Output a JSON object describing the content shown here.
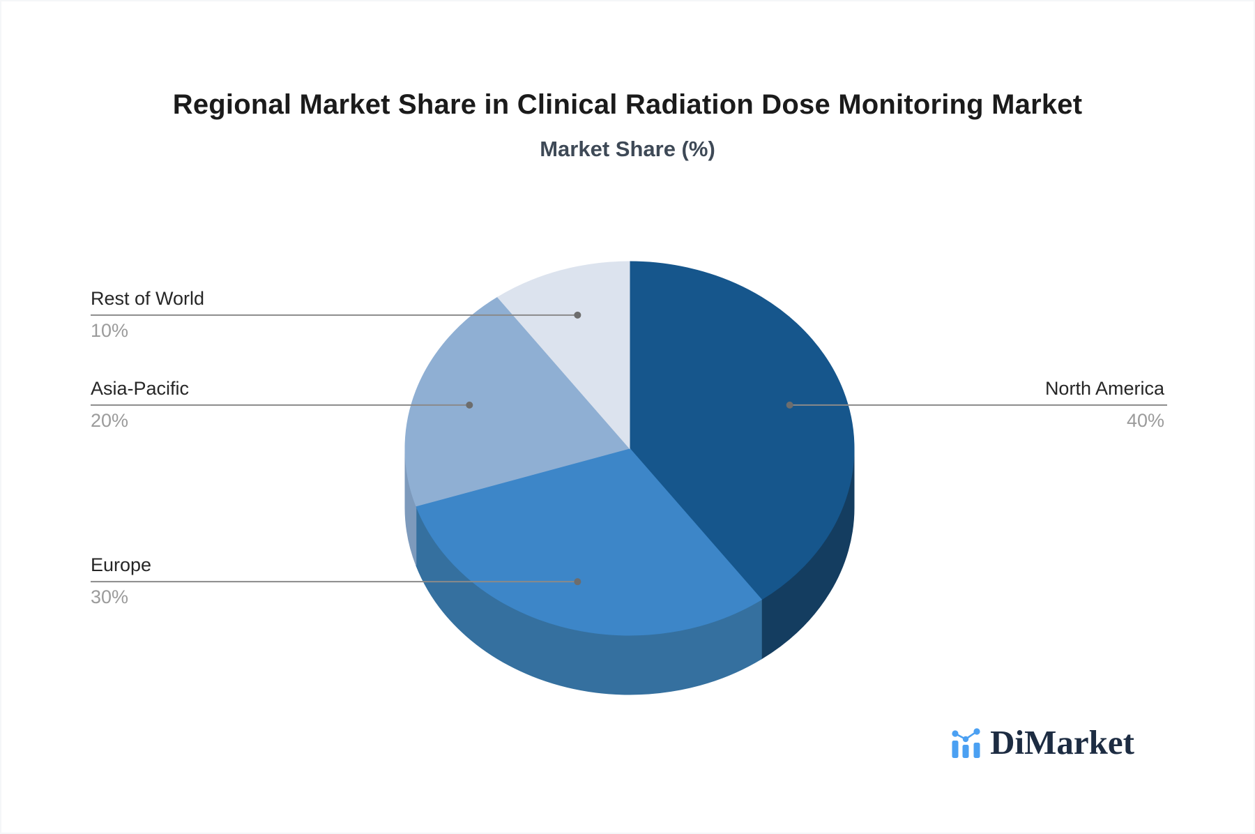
{
  "title": "Regional Market Share in Clinical Radiation Dose Monitoring Market",
  "subtitle": "Market Share (%)",
  "chart_data": {
    "type": "pie",
    "title": "Regional Market Share in Clinical Radiation Dose Monitoring Market",
    "subtitle": "Market Share (%)",
    "unit": "%",
    "style": "3d-pie",
    "start_position": "top",
    "direction": "clockwise",
    "legend_position": "none",
    "categories": [
      "North America",
      "Europe",
      "Asia-Pacific",
      "Rest of World"
    ],
    "values": [
      40,
      30,
      20,
      10
    ],
    "slices": [
      {
        "label": "North America",
        "value": 40,
        "pct_label": "40%",
        "color": "#16568C",
        "side_color": "#143D60",
        "label_side": "right"
      },
      {
        "label": "Europe",
        "value": 30,
        "pct_label": "30%",
        "color": "#3D86C8",
        "side_color": "#35709F",
        "label_side": "left"
      },
      {
        "label": "Asia-Pacific",
        "value": 20,
        "pct_label": "20%",
        "color": "#8FAFD3",
        "side_color": "#7D9ABC",
        "label_side": "left"
      },
      {
        "label": "Rest of World",
        "value": 10,
        "pct_label": "10%",
        "color": "#DCE3EE",
        "side_color": "#C9D2E0",
        "label_side": "left"
      }
    ],
    "leader_line_color": "#8a8a8a",
    "leader_dot_color": "#6d6d6d",
    "label_name_color": "#262626",
    "label_value_color": "#9b9b9b"
  },
  "branding": {
    "logo_text": "DiMarket",
    "logo_icon": "bar-line-chart-icon",
    "logo_text_color": "#1d2c42",
    "logo_accent_color": "#4BA0F2"
  }
}
